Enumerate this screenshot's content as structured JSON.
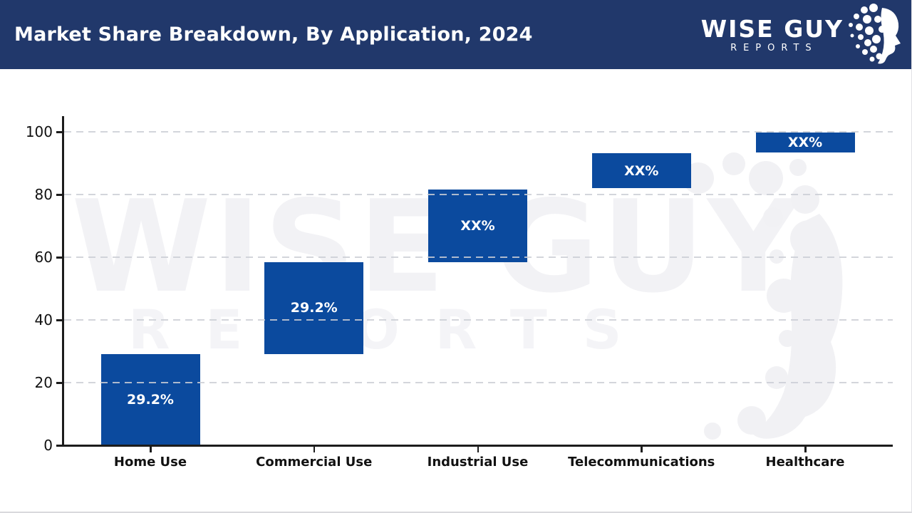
{
  "header": {
    "title": "Market Share Breakdown, By Application, 2024",
    "bg_color": "#21386b",
    "logo": {
      "line1": "WISE GUY",
      "line2": "REPORTS",
      "face_icon": "dotted-head-profile-icon"
    }
  },
  "watermark": {
    "line1": "WISE GUY",
    "line2": "REPORTS",
    "face_icon": "dotted-head-profile-watermark"
  },
  "chart_data": {
    "type": "bar",
    "subtype": "waterfall",
    "title": "Market Share Breakdown, By Application, 2024",
    "categories": [
      "Home Use",
      "Commercial Use",
      "Industrial Use",
      "Telecommunications",
      "Healthcare"
    ],
    "segments": [
      {
        "category": "Home Use",
        "start": 0,
        "end": 29.2,
        "label": "29.2%"
      },
      {
        "category": "Commercial Use",
        "start": 29.2,
        "end": 58.4,
        "label": "29.2%"
      },
      {
        "category": "Industrial Use",
        "start": 58.4,
        "end": 81.5,
        "label": "XX%"
      },
      {
        "category": "Telecommunications",
        "start": 82.0,
        "end": 93.2,
        "label": "XX%"
      },
      {
        "category": "Healthcare",
        "start": 93.4,
        "end": 99.8,
        "label": "XX%"
      }
    ],
    "xlabel": "",
    "ylabel": "",
    "yticks": [
      0,
      20,
      40,
      60,
      80,
      100
    ],
    "ylim": [
      0,
      106
    ],
    "grid": "dashed-horizontal",
    "legend": "none",
    "bar_color": "#0b4a9e",
    "bar_label_color": "#ffffff",
    "axis_color": "#1c1c1c"
  }
}
